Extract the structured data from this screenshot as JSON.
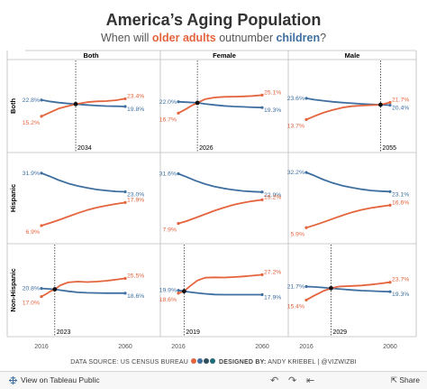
{
  "header": {
    "title": "America’s Aging Population",
    "subtitle_pre": "When will ",
    "subtitle_older": "older adults",
    "subtitle_mid": " outnumber ",
    "subtitle_children": "children",
    "subtitle_post": "?"
  },
  "colors": {
    "older": "#e4643d",
    "children": "#3e6fa0",
    "grid": "#bdbdbd",
    "text": "#333333"
  },
  "chart_data": {
    "type": "line",
    "columns": [
      "Both",
      "Female",
      "Male"
    ],
    "rows": [
      "Both",
      "Hispanic",
      "Non-Hispanic"
    ],
    "x_ticks": [
      "2016",
      "2060"
    ],
    "xlim": [
      2016,
      2060
    ],
    "ylim": [
      0,
      40
    ],
    "series_names": [
      "older adults",
      "children"
    ],
    "panels": [
      {
        "row": "Both",
        "col": "Both",
        "crossover": "2034",
        "cross_y": 20.9,
        "older": [
          [
            2016,
            15.2
          ],
          [
            2020,
            16.8
          ],
          [
            2025,
            18.8
          ],
          [
            2030,
            20.0
          ],
          [
            2034,
            20.9
          ],
          [
            2040,
            21.8
          ],
          [
            2045,
            22.2
          ],
          [
            2050,
            22.3
          ],
          [
            2055,
            22.7
          ],
          [
            2060,
            23.4
          ]
        ],
        "children": [
          [
            2016,
            22.8
          ],
          [
            2020,
            22.2
          ],
          [
            2025,
            21.6
          ],
          [
            2030,
            21.2
          ],
          [
            2034,
            20.9
          ],
          [
            2040,
            20.5
          ],
          [
            2045,
            20.2
          ],
          [
            2050,
            20.0
          ],
          [
            2055,
            19.9
          ],
          [
            2060,
            19.8
          ]
        ],
        "older_start": "15.2%",
        "older_end": "23.4%",
        "children_start": "22.8%",
        "children_end": "19.8%"
      },
      {
        "row": "Both",
        "col": "Female",
        "crossover": "2026",
        "cross_y": 21.5,
        "older": [
          [
            2016,
            16.7
          ],
          [
            2020,
            18.6
          ],
          [
            2023,
            20.2
          ],
          [
            2026,
            21.5
          ],
          [
            2030,
            23.2
          ],
          [
            2035,
            24.0
          ],
          [
            2040,
            24.3
          ],
          [
            2045,
            24.4
          ],
          [
            2050,
            24.5
          ],
          [
            2055,
            24.7
          ],
          [
            2060,
            25.1
          ]
        ],
        "children": [
          [
            2016,
            22.0
          ],
          [
            2020,
            21.8
          ],
          [
            2026,
            21.5
          ],
          [
            2030,
            21.0
          ],
          [
            2035,
            20.5
          ],
          [
            2040,
            20.1
          ],
          [
            2045,
            19.8
          ],
          [
            2050,
            19.6
          ],
          [
            2055,
            19.4
          ],
          [
            2060,
            19.3
          ]
        ],
        "older_start": "16.7%",
        "older_end": "25.1%",
        "children_start": "22.0%",
        "children_end": "19.3%"
      },
      {
        "row": "Both",
        "col": "Male",
        "crossover": "2055",
        "cross_y": 20.6,
        "older": [
          [
            2016,
            13.7
          ],
          [
            2020,
            15.2
          ],
          [
            2025,
            16.9
          ],
          [
            2030,
            18.2
          ],
          [
            2035,
            19.3
          ],
          [
            2040,
            19.9
          ],
          [
            2045,
            20.2
          ],
          [
            2050,
            20.4
          ],
          [
            2055,
            20.6
          ],
          [
            2060,
            21.7
          ]
        ],
        "children": [
          [
            2016,
            23.6
          ],
          [
            2020,
            23.0
          ],
          [
            2025,
            22.5
          ],
          [
            2030,
            22.0
          ],
          [
            2035,
            21.6
          ],
          [
            2040,
            21.3
          ],
          [
            2045,
            21.0
          ],
          [
            2050,
            20.8
          ],
          [
            2055,
            20.6
          ],
          [
            2060,
            20.4
          ]
        ],
        "older_start": "13.7%",
        "older_end": "21.7%",
        "children_start": "23.6%",
        "children_end": "20.4%"
      },
      {
        "row": "Hispanic",
        "col": "Both",
        "crossover": null,
        "cross_y": null,
        "older": [
          [
            2016,
            6.9
          ],
          [
            2020,
            8.0
          ],
          [
            2025,
            9.5
          ],
          [
            2030,
            11.2
          ],
          [
            2035,
            12.8
          ],
          [
            2040,
            14.3
          ],
          [
            2045,
            15.5
          ],
          [
            2050,
            16.4
          ],
          [
            2055,
            17.2
          ],
          [
            2060,
            17.9
          ]
        ],
        "children": [
          [
            2016,
            31.9
          ],
          [
            2020,
            30.5
          ],
          [
            2025,
            28.6
          ],
          [
            2030,
            27.0
          ],
          [
            2035,
            25.8
          ],
          [
            2040,
            24.9
          ],
          [
            2045,
            24.1
          ],
          [
            2050,
            23.6
          ],
          [
            2055,
            23.2
          ],
          [
            2060,
            23.0
          ]
        ],
        "older_start": "6.9%",
        "older_end": "17.9%",
        "children_start": "31.9%",
        "children_end": "23.0%"
      },
      {
        "row": "Hispanic",
        "col": "Female",
        "crossover": null,
        "cross_y": null,
        "older": [
          [
            2016,
            7.9
          ],
          [
            2020,
            9.0
          ],
          [
            2025,
            10.6
          ],
          [
            2030,
            12.3
          ],
          [
            2035,
            14.0
          ],
          [
            2040,
            15.5
          ],
          [
            2045,
            16.8
          ],
          [
            2050,
            17.8
          ],
          [
            2055,
            18.6
          ],
          [
            2060,
            19.2
          ]
        ],
        "children": [
          [
            2016,
            31.6
          ],
          [
            2020,
            30.2
          ],
          [
            2025,
            28.3
          ],
          [
            2030,
            26.7
          ],
          [
            2035,
            25.5
          ],
          [
            2040,
            24.6
          ],
          [
            2045,
            23.9
          ],
          [
            2050,
            23.4
          ],
          [
            2055,
            23.1
          ],
          [
            2060,
            22.9
          ]
        ],
        "older_start": "7.9%",
        "older_end": "19.2%",
        "children_start": "31.6%",
        "children_end": "22.9%"
      },
      {
        "row": "Hispanic",
        "col": "Male",
        "crossover": null,
        "cross_y": null,
        "older": [
          [
            2016,
            5.9
          ],
          [
            2020,
            7.0
          ],
          [
            2025,
            8.5
          ],
          [
            2030,
            10.2
          ],
          [
            2035,
            11.8
          ],
          [
            2040,
            13.2
          ],
          [
            2045,
            14.4
          ],
          [
            2050,
            15.3
          ],
          [
            2055,
            16.0
          ],
          [
            2060,
            16.6
          ]
        ],
        "children": [
          [
            2016,
            32.2
          ],
          [
            2020,
            30.8
          ],
          [
            2025,
            28.8
          ],
          [
            2030,
            27.2
          ],
          [
            2035,
            25.9
          ],
          [
            2040,
            25.0
          ],
          [
            2045,
            24.2
          ],
          [
            2050,
            23.6
          ],
          [
            2055,
            23.3
          ],
          [
            2060,
            23.1
          ]
        ],
        "older_start": "5.9%",
        "older_end": "16.6%",
        "children_start": "32.2%",
        "children_end": "23.1%"
      },
      {
        "row": "Non-Hispanic",
        "col": "Both",
        "crossover": "2023",
        "cross_y": 20.4,
        "older": [
          [
            2016,
            17.0
          ],
          [
            2019,
            18.5
          ],
          [
            2021,
            19.6
          ],
          [
            2023,
            20.4
          ],
          [
            2026,
            22.3
          ],
          [
            2030,
            23.6
          ],
          [
            2035,
            24.0
          ],
          [
            2040,
            23.8
          ],
          [
            2045,
            24.0
          ],
          [
            2050,
            24.4
          ],
          [
            2055,
            24.9
          ],
          [
            2060,
            25.5
          ]
        ],
        "children": [
          [
            2016,
            20.8
          ],
          [
            2020,
            20.6
          ],
          [
            2023,
            20.4
          ],
          [
            2026,
            20.0
          ],
          [
            2030,
            19.5
          ],
          [
            2035,
            19.0
          ],
          [
            2040,
            18.8
          ],
          [
            2045,
            18.7
          ],
          [
            2050,
            18.6
          ],
          [
            2055,
            18.6
          ],
          [
            2060,
            18.6
          ]
        ],
        "older_start": "17.0%",
        "older_end": "25.5%",
        "children_start": "20.8%",
        "children_end": "18.6%"
      },
      {
        "row": "Non-Hispanic",
        "col": "Female",
        "crossover": "2019",
        "cross_y": 19.5,
        "older": [
          [
            2016,
            18.6
          ],
          [
            2019,
            19.5
          ],
          [
            2022,
            21.8
          ],
          [
            2026,
            24.5
          ],
          [
            2030,
            25.8
          ],
          [
            2035,
            26.0
          ],
          [
            2040,
            25.9
          ],
          [
            2045,
            26.1
          ],
          [
            2050,
            26.4
          ],
          [
            2055,
            26.8
          ],
          [
            2060,
            27.2
          ]
        ],
        "children": [
          [
            2016,
            19.9
          ],
          [
            2019,
            19.5
          ],
          [
            2022,
            19.1
          ],
          [
            2026,
            18.7
          ],
          [
            2030,
            18.3
          ],
          [
            2035,
            18.0
          ],
          [
            2040,
            17.9
          ],
          [
            2045,
            17.9
          ],
          [
            2050,
            17.9
          ],
          [
            2055,
            17.9
          ],
          [
            2060,
            17.9
          ]
        ],
        "older_start": "18.6%",
        "older_end": "27.2%",
        "children_start": "19.9%",
        "children_end": "17.9%"
      },
      {
        "row": "Non-Hispanic",
        "col": "Male",
        "crossover": "2029",
        "cross_y": 20.9,
        "older": [
          [
            2016,
            15.4
          ],
          [
            2020,
            17.4
          ],
          [
            2025,
            19.6
          ],
          [
            2029,
            20.9
          ],
          [
            2033,
            21.7
          ],
          [
            2040,
            22.0
          ],
          [
            2045,
            22.2
          ],
          [
            2050,
            22.6
          ],
          [
            2055,
            23.1
          ],
          [
            2060,
            23.7
          ]
        ],
        "children": [
          [
            2016,
            21.7
          ],
          [
            2020,
            21.5
          ],
          [
            2025,
            21.2
          ],
          [
            2029,
            20.9
          ],
          [
            2033,
            20.6
          ],
          [
            2040,
            20.1
          ],
          [
            2045,
            19.8
          ],
          [
            2050,
            19.6
          ],
          [
            2055,
            19.4
          ],
          [
            2060,
            19.3
          ]
        ],
        "older_start": "15.4%",
        "older_end": "23.7%",
        "children_start": "21.7%",
        "children_end": "19.3%"
      }
    ]
  },
  "source": {
    "prefix": "DATA SOURCE: US CENSUS BUREAU",
    "designed_by": "DESIGNED BY:",
    "designer": "ANDY KRIEBEL | @VIZWIZBI",
    "dot_colors": [
      "#e4643d",
      "#3e6fa0",
      "#2f4f5f",
      "#1f6b7a"
    ]
  },
  "footer": {
    "view_label": "View on Tableau Public",
    "icon": "tableau-grid-icon",
    "undo_icon": "undo-icon",
    "redo_icon": "redo-icon",
    "revert_icon": "revert-icon",
    "share_label": "Share",
    "share_icon": "share-icon"
  }
}
